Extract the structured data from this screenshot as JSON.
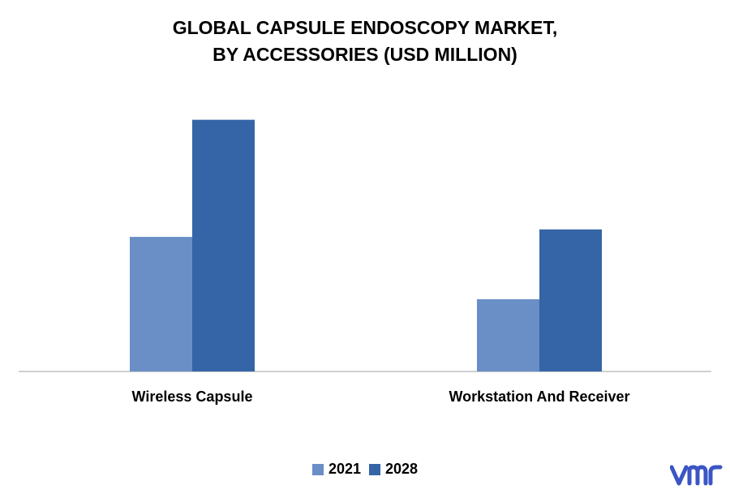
{
  "chart_data": {
    "type": "bar",
    "title_lines": [
      "GLOBAL CAPSULE ENDOSCOPY MARKET,",
      "BY ACCESSORIES (USD MILLION)"
    ],
    "categories": [
      "Wireless Capsule",
      "Workstation And Receiver"
    ],
    "series": [
      {
        "name": "2021",
        "values": [
          54,
          29
        ],
        "color": "#6A8EC6"
      },
      {
        "name": "2028",
        "values": [
          101,
          57
        ],
        "color": "#3565A6"
      }
    ],
    "ylim": [
      0,
      110
    ],
    "grid": false,
    "legend_position": "bottom"
  },
  "branding": {
    "logo_text": "vmr",
    "logo_color": "#3B55C4"
  }
}
